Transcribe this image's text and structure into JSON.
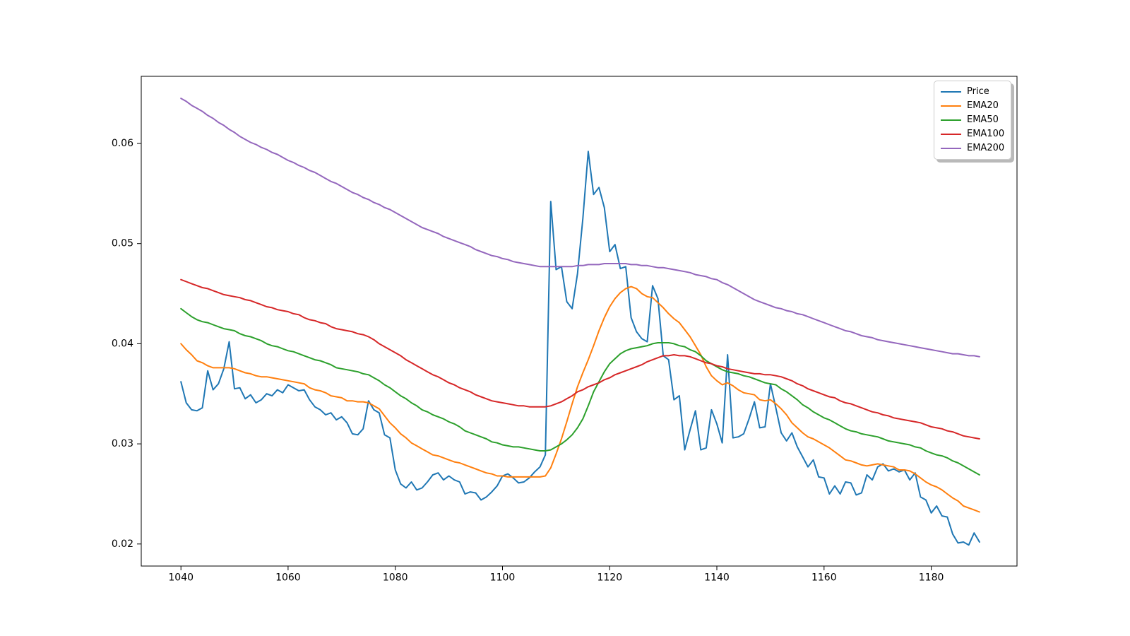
{
  "chart_data": {
    "type": "line",
    "title": "",
    "xlabel": "",
    "ylabel": "",
    "grid": false,
    "background": "#ffffff",
    "axis_color": "#000000",
    "xlim": [
      1032.6,
      1196.0
    ],
    "ylim": [
      0.0178,
      0.0667
    ],
    "x_ticks": [
      1040,
      1060,
      1080,
      1100,
      1120,
      1140,
      1160,
      1180
    ],
    "y_ticks": [
      0.02,
      0.03,
      0.04,
      0.05,
      0.06
    ],
    "y_tick_labels": [
      "0.02",
      "0.03",
      "0.04",
      "0.05",
      "0.06"
    ],
    "x_start": 1040,
    "x_step": 1,
    "legend": {
      "position": "upper right",
      "entries": [
        {
          "label": "Price",
          "color": "#1f77b4"
        },
        {
          "label": "EMA20",
          "color": "#ff7f0e"
        },
        {
          "label": "EMA50",
          "color": "#2ca02c"
        },
        {
          "label": "EMA100",
          "color": "#d62728"
        },
        {
          "label": "EMA200",
          "color": "#9467bd"
        }
      ]
    },
    "series": [
      {
        "name": "Price",
        "color": "#1f77b4",
        "values": [
          0.0362,
          0.0341,
          0.0334,
          0.0333,
          0.0336,
          0.0373,
          0.0354,
          0.036,
          0.0375,
          0.0402,
          0.0355,
          0.0356,
          0.0345,
          0.0349,
          0.0341,
          0.0344,
          0.035,
          0.0348,
          0.0354,
          0.0351,
          0.0359,
          0.0356,
          0.0353,
          0.0354,
          0.0344,
          0.0337,
          0.0334,
          0.0329,
          0.0331,
          0.0324,
          0.0327,
          0.0321,
          0.031,
          0.0309,
          0.0315,
          0.0343,
          0.0334,
          0.0331,
          0.0309,
          0.0306,
          0.0274,
          0.026,
          0.0256,
          0.0262,
          0.0254,
          0.0256,
          0.0262,
          0.0269,
          0.0271,
          0.0264,
          0.0268,
          0.0264,
          0.0262,
          0.025,
          0.0252,
          0.0251,
          0.0244,
          0.0247,
          0.0252,
          0.0258,
          0.0268,
          0.027,
          0.0266,
          0.0261,
          0.0262,
          0.0266,
          0.0272,
          0.0277,
          0.0289,
          0.0542,
          0.0474,
          0.0477,
          0.0442,
          0.0435,
          0.047,
          0.0525,
          0.0592,
          0.0549,
          0.0556,
          0.0536,
          0.0492,
          0.0499,
          0.0475,
          0.0477,
          0.0426,
          0.0412,
          0.0405,
          0.0402,
          0.0458,
          0.0445,
          0.0388,
          0.0384,
          0.0344,
          0.0348,
          0.0294,
          0.0314,
          0.0333,
          0.0294,
          0.0296,
          0.0334,
          0.032,
          0.0301,
          0.0389,
          0.0306,
          0.0307,
          0.031,
          0.0325,
          0.0342,
          0.0316,
          0.0317,
          0.036,
          0.0336,
          0.0311,
          0.0303,
          0.0311,
          0.0297,
          0.0287,
          0.0277,
          0.0284,
          0.0267,
          0.0266,
          0.025,
          0.0258,
          0.025,
          0.0262,
          0.0261,
          0.0249,
          0.0251,
          0.0269,
          0.0264,
          0.0277,
          0.028,
          0.0273,
          0.0275,
          0.0272,
          0.0274,
          0.0264,
          0.0271,
          0.0247,
          0.0244,
          0.0231,
          0.0238,
          0.0228,
          0.0227,
          0.021,
          0.0201,
          0.0202,
          0.0199,
          0.0211,
          0.0202
        ]
      },
      {
        "name": "EMA20",
        "color": "#ff7f0e",
        "values": [
          0.04,
          0.0394,
          0.0389,
          0.0383,
          0.0381,
          0.0378,
          0.0376,
          0.0376,
          0.0376,
          0.0376,
          0.0375,
          0.0373,
          0.0371,
          0.037,
          0.0368,
          0.0367,
          0.0367,
          0.0366,
          0.0365,
          0.0364,
          0.0363,
          0.0362,
          0.0361,
          0.036,
          0.0356,
          0.0354,
          0.0353,
          0.0351,
          0.0348,
          0.0347,
          0.0346,
          0.0343,
          0.0343,
          0.0342,
          0.0342,
          0.0341,
          0.0338,
          0.0335,
          0.0328,
          0.0321,
          0.0316,
          0.031,
          0.0306,
          0.0301,
          0.0298,
          0.0295,
          0.0292,
          0.0289,
          0.0288,
          0.0286,
          0.0284,
          0.0282,
          0.0281,
          0.0279,
          0.0277,
          0.0275,
          0.0273,
          0.0271,
          0.027,
          0.0268,
          0.0268,
          0.0267,
          0.0267,
          0.0267,
          0.0267,
          0.0267,
          0.0267,
          0.0267,
          0.0268,
          0.0276,
          0.029,
          0.0305,
          0.0322,
          0.034,
          0.0357,
          0.0371,
          0.0384,
          0.0398,
          0.0413,
          0.0426,
          0.0437,
          0.0445,
          0.0451,
          0.0455,
          0.0457,
          0.0455,
          0.045,
          0.0447,
          0.0446,
          0.0441,
          0.0436,
          0.043,
          0.0425,
          0.0421,
          0.0414,
          0.0407,
          0.0398,
          0.0389,
          0.0377,
          0.0368,
          0.0363,
          0.0359,
          0.0361,
          0.0358,
          0.0354,
          0.0351,
          0.035,
          0.0349,
          0.0344,
          0.0343,
          0.0344,
          0.034,
          0.0335,
          0.0329,
          0.0321,
          0.0316,
          0.0311,
          0.0307,
          0.0305,
          0.0302,
          0.0299,
          0.0296,
          0.0292,
          0.0288,
          0.0284,
          0.0283,
          0.0281,
          0.0279,
          0.0278,
          0.0279,
          0.028,
          0.0279,
          0.0278,
          0.0277,
          0.0274,
          0.0274,
          0.0273,
          0.027,
          0.0266,
          0.0262,
          0.0259,
          0.0257,
          0.0254,
          0.025,
          0.0246,
          0.0243,
          0.0238,
          0.0236,
          0.0234,
          0.0232
        ]
      },
      {
        "name": "EMA50",
        "color": "#2ca02c",
        "values": [
          0.0435,
          0.0431,
          0.0427,
          0.0424,
          0.0422,
          0.0421,
          0.0419,
          0.0417,
          0.0415,
          0.0414,
          0.0413,
          0.041,
          0.0408,
          0.0407,
          0.0405,
          0.0403,
          0.04,
          0.0398,
          0.0397,
          0.0395,
          0.0393,
          0.0392,
          0.039,
          0.0388,
          0.0386,
          0.0384,
          0.0383,
          0.0381,
          0.0379,
          0.0376,
          0.0375,
          0.0374,
          0.0373,
          0.0372,
          0.037,
          0.0369,
          0.0366,
          0.0363,
          0.0359,
          0.0356,
          0.0352,
          0.0348,
          0.0345,
          0.0341,
          0.0338,
          0.0334,
          0.0332,
          0.0329,
          0.0327,
          0.0325,
          0.0322,
          0.032,
          0.0317,
          0.0313,
          0.0311,
          0.0309,
          0.0307,
          0.0305,
          0.0302,
          0.0301,
          0.0299,
          0.0298,
          0.0297,
          0.0297,
          0.0296,
          0.0295,
          0.0294,
          0.0293,
          0.0293,
          0.0294,
          0.0297,
          0.03,
          0.0304,
          0.0309,
          0.0316,
          0.0325,
          0.0338,
          0.0352,
          0.0362,
          0.0372,
          0.038,
          0.0385,
          0.039,
          0.0393,
          0.0395,
          0.0396,
          0.0397,
          0.0398,
          0.04,
          0.0401,
          0.0401,
          0.0401,
          0.04,
          0.0398,
          0.0397,
          0.0394,
          0.0392,
          0.0388,
          0.0383,
          0.038,
          0.0377,
          0.0374,
          0.0372,
          0.0371,
          0.037,
          0.0368,
          0.0367,
          0.0365,
          0.0363,
          0.0361,
          0.036,
          0.0359,
          0.0355,
          0.0352,
          0.0348,
          0.0344,
          0.0339,
          0.0336,
          0.0332,
          0.0329,
          0.0326,
          0.0324,
          0.0321,
          0.0318,
          0.0315,
          0.0313,
          0.0312,
          0.031,
          0.0309,
          0.0308,
          0.0307,
          0.0305,
          0.0303,
          0.0302,
          0.0301,
          0.03,
          0.0299,
          0.0297,
          0.0296,
          0.0293,
          0.0291,
          0.0289,
          0.0288,
          0.0286,
          0.0283,
          0.0281,
          0.0278,
          0.0275,
          0.0272,
          0.0269
        ]
      },
      {
        "name": "EMA100",
        "color": "#d62728",
        "values": [
          0.0464,
          0.0462,
          0.046,
          0.0458,
          0.0456,
          0.0455,
          0.0453,
          0.0451,
          0.0449,
          0.0448,
          0.0447,
          0.0446,
          0.0444,
          0.0443,
          0.0441,
          0.0439,
          0.0437,
          0.0436,
          0.0434,
          0.0433,
          0.0432,
          0.043,
          0.0429,
          0.0426,
          0.0424,
          0.0423,
          0.0421,
          0.042,
          0.0417,
          0.0415,
          0.0414,
          0.0413,
          0.0412,
          0.041,
          0.0409,
          0.0407,
          0.0404,
          0.04,
          0.0397,
          0.0394,
          0.0391,
          0.0388,
          0.0384,
          0.0381,
          0.0378,
          0.0375,
          0.0372,
          0.0369,
          0.0367,
          0.0364,
          0.0361,
          0.0359,
          0.0356,
          0.0354,
          0.0352,
          0.0349,
          0.0347,
          0.0345,
          0.0343,
          0.0342,
          0.0341,
          0.034,
          0.0339,
          0.0338,
          0.0338,
          0.0337,
          0.0337,
          0.0337,
          0.0337,
          0.0338,
          0.034,
          0.0342,
          0.0345,
          0.0348,
          0.0352,
          0.0354,
          0.0357,
          0.0359,
          0.0361,
          0.0364,
          0.0366,
          0.0369,
          0.0371,
          0.0373,
          0.0375,
          0.0377,
          0.0379,
          0.0382,
          0.0384,
          0.0386,
          0.0388,
          0.0388,
          0.0389,
          0.0388,
          0.0388,
          0.0387,
          0.0385,
          0.0383,
          0.0381,
          0.038,
          0.0378,
          0.0377,
          0.0375,
          0.0374,
          0.0373,
          0.0372,
          0.0371,
          0.037,
          0.037,
          0.0369,
          0.0369,
          0.0368,
          0.0367,
          0.0365,
          0.0363,
          0.036,
          0.0358,
          0.0355,
          0.0353,
          0.0351,
          0.0349,
          0.0347,
          0.0346,
          0.0343,
          0.0341,
          0.034,
          0.0338,
          0.0336,
          0.0334,
          0.0332,
          0.0331,
          0.0329,
          0.0328,
          0.0326,
          0.0325,
          0.0324,
          0.0323,
          0.0322,
          0.0321,
          0.0319,
          0.0317,
          0.0316,
          0.0315,
          0.0313,
          0.0312,
          0.031,
          0.0308,
          0.0307,
          0.0306,
          0.0305
        ]
      },
      {
        "name": "EMA200",
        "color": "#9467bd",
        "values": [
          0.0645,
          0.0642,
          0.0638,
          0.0635,
          0.0632,
          0.0628,
          0.0625,
          0.0621,
          0.0618,
          0.0614,
          0.0611,
          0.0607,
          0.0604,
          0.0601,
          0.0599,
          0.0596,
          0.0594,
          0.0591,
          0.0589,
          0.0586,
          0.0583,
          0.0581,
          0.0578,
          0.0576,
          0.0573,
          0.0571,
          0.0568,
          0.0565,
          0.0562,
          0.056,
          0.0557,
          0.0554,
          0.0551,
          0.0549,
          0.0546,
          0.0544,
          0.0541,
          0.0539,
          0.0536,
          0.0534,
          0.0531,
          0.0528,
          0.0525,
          0.0522,
          0.0519,
          0.0516,
          0.0514,
          0.0512,
          0.051,
          0.0507,
          0.0505,
          0.0503,
          0.0501,
          0.0499,
          0.0497,
          0.0494,
          0.0492,
          0.049,
          0.0488,
          0.0487,
          0.0485,
          0.0484,
          0.0482,
          0.0481,
          0.048,
          0.0479,
          0.0478,
          0.0477,
          0.0477,
          0.0477,
          0.0477,
          0.0477,
          0.0477,
          0.0477,
          0.0478,
          0.0478,
          0.0479,
          0.0479,
          0.0479,
          0.048,
          0.048,
          0.048,
          0.048,
          0.048,
          0.0479,
          0.0479,
          0.0478,
          0.0478,
          0.0477,
          0.0476,
          0.0476,
          0.0475,
          0.0474,
          0.0473,
          0.0472,
          0.0471,
          0.0469,
          0.0468,
          0.0467,
          0.0465,
          0.0464,
          0.0461,
          0.0459,
          0.0456,
          0.0453,
          0.045,
          0.0447,
          0.0444,
          0.0442,
          0.044,
          0.0438,
          0.0436,
          0.0435,
          0.0433,
          0.0432,
          0.043,
          0.0429,
          0.0427,
          0.0425,
          0.0423,
          0.0421,
          0.0419,
          0.0417,
          0.0415,
          0.0413,
          0.0412,
          0.041,
          0.0408,
          0.0407,
          0.0406,
          0.0404,
          0.0403,
          0.0402,
          0.0401,
          0.04,
          0.0399,
          0.0398,
          0.0397,
          0.0396,
          0.0395,
          0.0394,
          0.0393,
          0.0392,
          0.0391,
          0.039,
          0.039,
          0.0389,
          0.0388,
          0.0388,
          0.0387
        ]
      }
    ]
  }
}
